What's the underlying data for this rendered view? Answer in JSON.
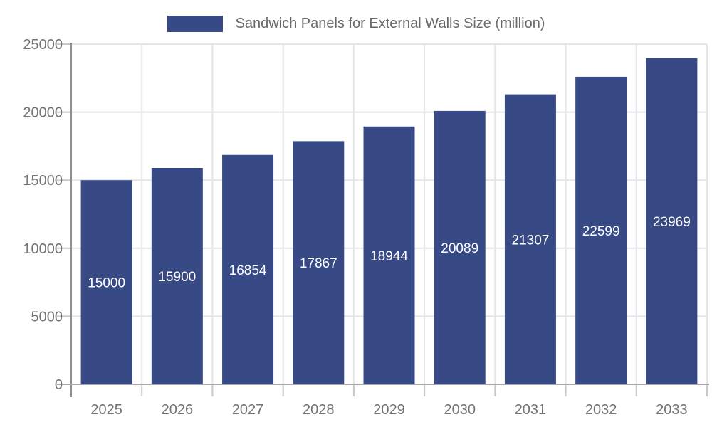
{
  "legend": {
    "label": "Sandwich Panels for External Walls Size (million)"
  },
  "chart_data": {
    "type": "bar",
    "title": "Sandwich Panels for External Walls Size (million)",
    "categories": [
      "2025",
      "2026",
      "2027",
      "2028",
      "2029",
      "2030",
      "2031",
      "2032",
      "2033"
    ],
    "series": [
      {
        "name": "Sandwich Panels for External Walls Size (million)",
        "values": [
          15000,
          15900,
          16854,
          17867,
          18944,
          20089,
          21307,
          22599,
          23969
        ]
      }
    ],
    "value_labels_shown": true,
    "xlabel": "",
    "ylabel": "",
    "ylim": [
      0,
      25000
    ],
    "yticks": [
      0,
      5000,
      10000,
      15000,
      20000,
      25000
    ],
    "grid": true,
    "legend_position": "top",
    "colors": {
      "bar": "#384a85",
      "value_label": "#ffffff",
      "axis_text": "#737373",
      "title_text": "#6a6a6a",
      "grid_line": "#e4e4e9",
      "tick_line": "#c8c8cd",
      "y_axis_line": "#8f8f8f",
      "x_axis_line": "#a8a8a8",
      "background": "#ffffff"
    }
  }
}
